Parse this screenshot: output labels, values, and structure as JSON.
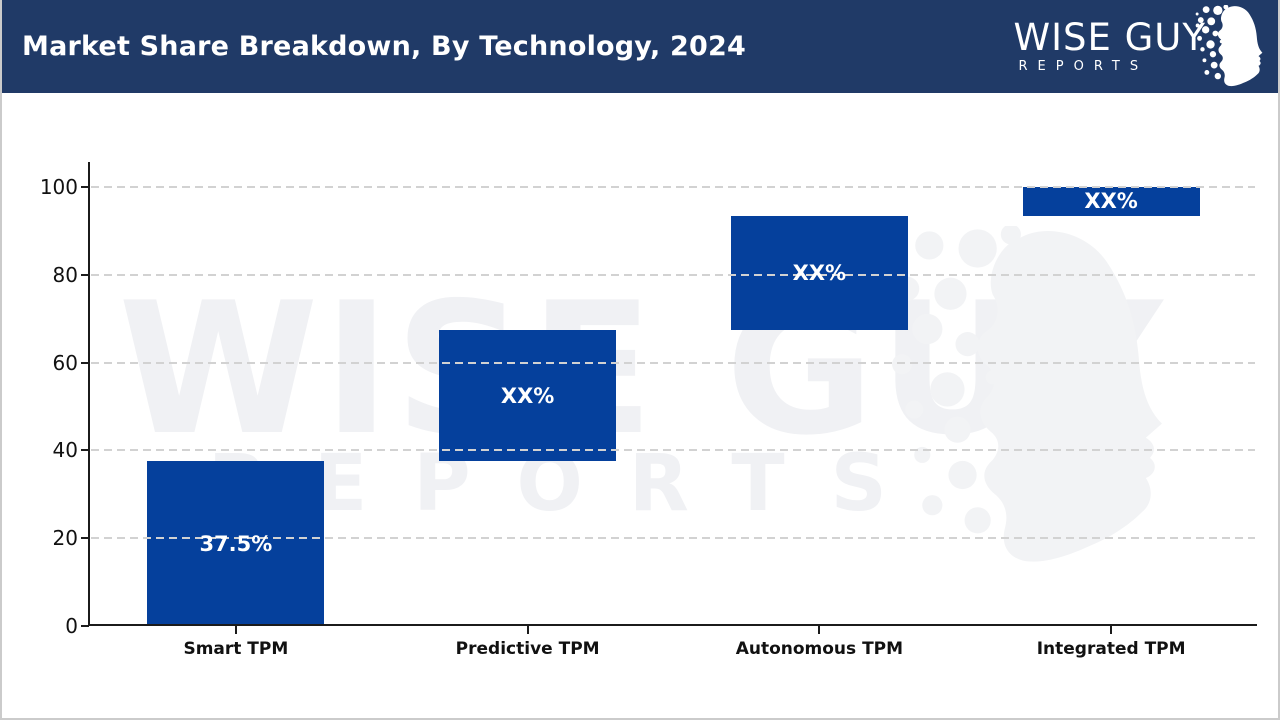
{
  "header": {
    "title": "Market Share Breakdown, By Technology, 2024",
    "logo": {
      "brand_line1": "WISE GUY",
      "brand_line2": "REPORTS"
    }
  },
  "watermark": {
    "line1": "WISE GUY",
    "line2": "REPORTS"
  },
  "chart_data": {
    "type": "bar",
    "subtype": "waterfall-stacked-market-share",
    "title": "Market Share Breakdown, By Technology, 2024",
    "categories": [
      "Smart TPM",
      "Predictive TPM",
      "Autonomous TPM",
      "Integrated TPM"
    ],
    "series": [
      {
        "name": "Market share (%)",
        "starts": [
          0,
          37.5,
          67.5,
          93.5
        ],
        "ends": [
          37.5,
          67.5,
          93.5,
          100
        ],
        "values": [
          37.5,
          30,
          26,
          6.5
        ],
        "labels": [
          "37.5%",
          "XX%",
          "XX%",
          "XX%"
        ]
      }
    ],
    "xlabel": "",
    "ylabel": "",
    "yticks": [
      0,
      20,
      40,
      60,
      80,
      100
    ],
    "ylim": [
      0,
      106
    ],
    "grid": true,
    "gridline_style": "dashed",
    "legend": "none",
    "bar_color": "#05409c",
    "bar_label_color": "#ffffff",
    "axis_color": "#1b1b1b",
    "gridline_color": "#d2d2d2",
    "header_color": "#203a67",
    "watermark_color": "#f0f1f4"
  }
}
